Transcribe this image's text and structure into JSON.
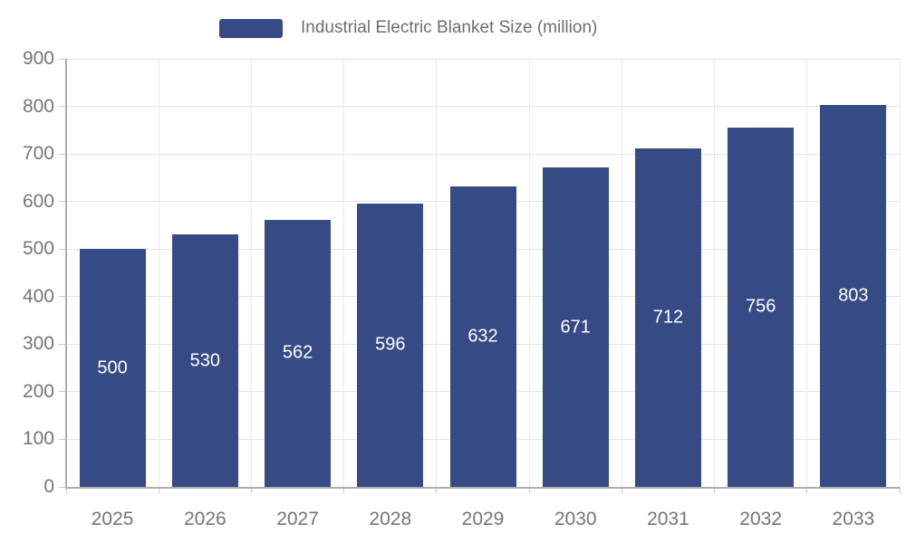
{
  "chart_data": {
    "type": "bar",
    "title": "Industrial Electric Blanket Size (million)",
    "legend": [
      "Industrial Electric Blanket Size (million)"
    ],
    "legend_position": "top",
    "categories": [
      "2025",
      "2026",
      "2027",
      "2028",
      "2029",
      "2030",
      "2031",
      "2032",
      "2033"
    ],
    "series": [
      {
        "name": "Industrial Electric Blanket Size (million)",
        "values": [
          500,
          530,
          562,
          596,
          632,
          671,
          712,
          756,
          803
        ]
      }
    ],
    "xlabel": "",
    "ylabel": "",
    "ylim": [
      0,
      900
    ],
    "y_ticks": [
      0,
      100,
      200,
      300,
      400,
      500,
      600,
      700,
      800,
      900
    ],
    "grid": true,
    "value_labels_inside_bars": true,
    "colors": {
      "bar": "#364A85",
      "bar_value_text": "#ffffff",
      "axis_line": "#adadb3",
      "tick_text": "#757575",
      "legend_text": "#6e6e6e",
      "gridline": "#e2e2e8",
      "background": "#ffffff"
    }
  }
}
